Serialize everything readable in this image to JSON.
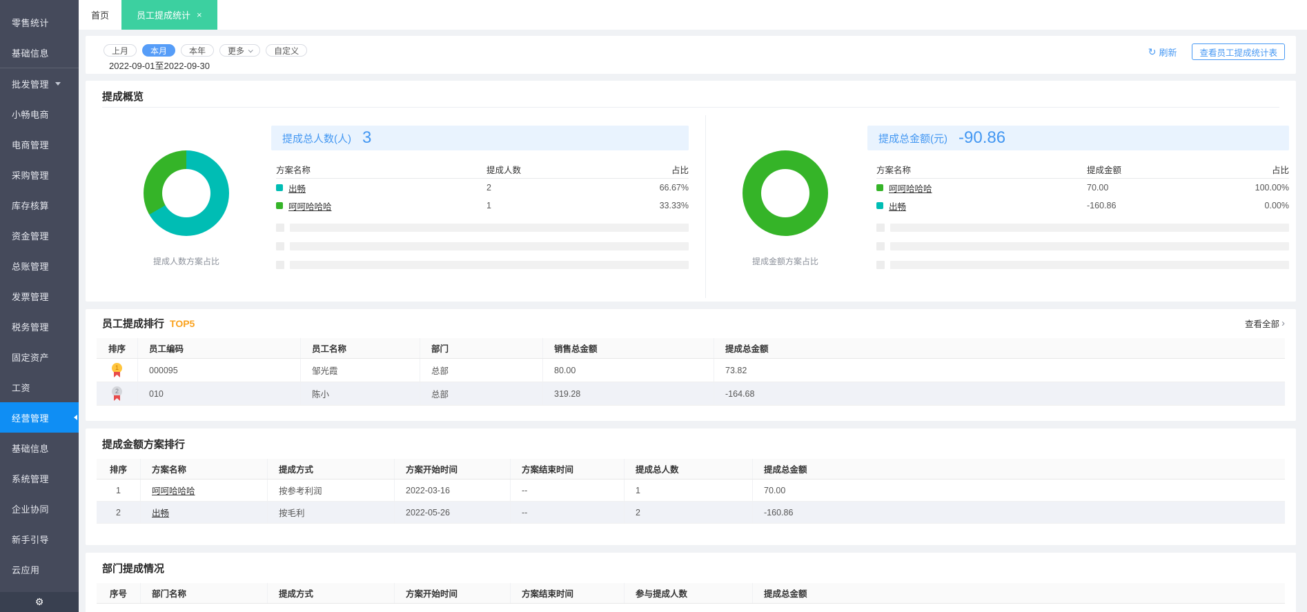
{
  "colors": {
    "sidebar_bg": "#454a5b",
    "active_item_blue": "#0f8ef4",
    "tab_green": "#3cd0a0",
    "accent_blue": "#4397f2",
    "pill_blue": "#569df8",
    "orange_badge": "#faa21e",
    "donut_teal": "#00bdb4",
    "donut_green": "#35b428"
  },
  "sidebar": {
    "top_items": [
      {
        "label": "零售统计",
        "state": ""
      },
      {
        "label": "基础信息",
        "state": ""
      }
    ],
    "items": [
      {
        "label": "批发管理",
        "state": "has-caret"
      },
      {
        "label": "小畅电商",
        "state": ""
      },
      {
        "label": "电商管理",
        "state": ""
      },
      {
        "label": "采购管理",
        "state": ""
      },
      {
        "label": "库存核算",
        "state": ""
      },
      {
        "label": "资金管理",
        "state": ""
      },
      {
        "label": "总账管理",
        "state": ""
      },
      {
        "label": "发票管理",
        "state": ""
      },
      {
        "label": "税务管理",
        "state": ""
      },
      {
        "label": "固定资产",
        "state": ""
      },
      {
        "label": "工资",
        "state": ""
      },
      {
        "label": "经营管理",
        "state": "active"
      },
      {
        "label": "基础信息",
        "state": ""
      },
      {
        "label": "系统管理",
        "state": ""
      },
      {
        "label": "企业协同",
        "state": ""
      },
      {
        "label": "新手引导",
        "state": ""
      },
      {
        "label": "云应用",
        "state": ""
      }
    ],
    "gear_glyph": "⚙"
  },
  "tabs": {
    "home": "首页",
    "active": "员工提成统计",
    "close": "×"
  },
  "filters": {
    "pills": [
      {
        "label": "上月",
        "state": ""
      },
      {
        "label": "本月",
        "state": "active"
      },
      {
        "label": "本年",
        "state": ""
      },
      {
        "label": "更多",
        "state": "has-caret"
      },
      {
        "label": "自定义",
        "state": ""
      }
    ],
    "date_range": "2022-09-01至2022-09-30",
    "refresh_icon": "↻",
    "refresh_label": "刷新",
    "report_button": "查看员工提成统计表"
  },
  "overview": {
    "title": "提成概览",
    "panels": [
      {
        "caption": "提成人数方案占比",
        "banner_label": "提成总人数(人)",
        "banner_value": "3",
        "columns": [
          "方案名称",
          "提成人数",
          "占比"
        ],
        "donut": [
          {
            "color": "#00bdb4",
            "pct": 66.67
          },
          {
            "color": "#35b428",
            "pct": 33.33
          }
        ],
        "rows": [
          {
            "swatch": "#00bdb4",
            "name": "出畅",
            "value": "2",
            "ratio": "66.67%"
          },
          {
            "swatch": "#35b428",
            "name": "呵呵哈哈哈",
            "value": "1",
            "ratio": "33.33%"
          }
        ]
      },
      {
        "caption": "提成金额方案占比",
        "banner_label": "提成总金额(元)",
        "banner_value": "-90.86",
        "columns": [
          "方案名称",
          "提成金额",
          "占比"
        ],
        "donut": [
          {
            "color": "#35b428",
            "pct": 100
          }
        ],
        "rows": [
          {
            "swatch": "#35b428",
            "name": "呵呵哈哈哈",
            "value": "70.00",
            "ratio": "100.00%"
          },
          {
            "swatch": "#00bdb4",
            "name": "出畅",
            "value": "-160.86",
            "ratio": "0.00%"
          }
        ]
      }
    ]
  },
  "ranking": {
    "title": "员工提成排行",
    "badge": "TOP5",
    "view_all": "查看全部",
    "view_all_chevron": "›",
    "headers": [
      "排序",
      "员工编码",
      "员工名称",
      "部门",
      "销售总金额",
      "提成总金额"
    ],
    "rows": [
      {
        "medal": "gold",
        "rank": "1",
        "code": "000095",
        "name": "邹光霞",
        "dept": "总部",
        "sales": "80.00",
        "commission": "73.82",
        "stripe": ""
      },
      {
        "medal": "silver",
        "rank": "2",
        "code": "010",
        "name": "陈小",
        "dept": "总部",
        "sales": "319.28",
        "commission": "-164.68",
        "stripe": "striped"
      }
    ]
  },
  "plan_ranking": {
    "title": "提成金额方案排行",
    "headers": [
      "排序",
      "方案名称",
      "提成方式",
      "方案开始时间",
      "方案结束时间",
      "提成总人数",
      "提成总金额"
    ],
    "rows": [
      {
        "rank": "1",
        "name": "呵呵哈哈哈",
        "method": "按参考利润",
        "start": "2022-03-16",
        "end": "--",
        "people": "1",
        "amount": "70.00",
        "stripe": ""
      },
      {
        "rank": "2",
        "name": "出畅",
        "method": "按毛利",
        "start": "2022-05-26",
        "end": "--",
        "people": "2",
        "amount": "-160.86",
        "stripe": "striped"
      }
    ]
  },
  "department": {
    "title": "部门提成情况",
    "headers": [
      "序号",
      "部门名称",
      "提成方式",
      "方案开始时间",
      "方案结束时间",
      "参与提成人数",
      "提成总金额"
    ]
  }
}
